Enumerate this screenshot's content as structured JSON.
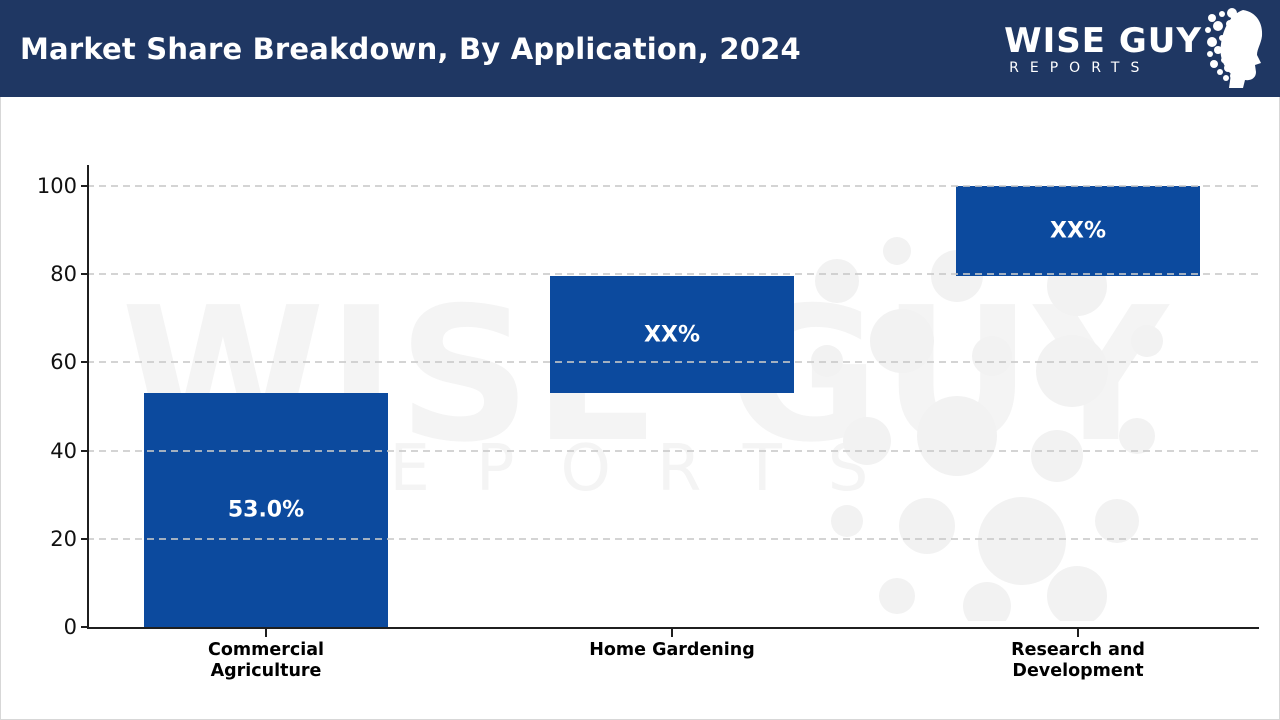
{
  "header": {
    "title": "Market Share Breakdown, By Application, 2024",
    "bg_color": "#1f3763"
  },
  "logo": {
    "wordmark": "WISE GUY",
    "subtext": "REPORTS"
  },
  "watermark": {
    "wordmark": "WISE GUY",
    "subtext": "REPORTS"
  },
  "chart_data": {
    "type": "bar",
    "variant": "floating-segment market share (waterfall style)",
    "title": "Market Share Breakdown, By Application, 2024",
    "categories": [
      {
        "lines": [
          "Commercial",
          "Agriculture"
        ]
      },
      {
        "lines": [
          "Home Gardening"
        ]
      },
      {
        "lines": [
          "Research and",
          "Development"
        ]
      }
    ],
    "segments": [
      {
        "category": "Commercial Agriculture",
        "from": 0,
        "to": 53,
        "label": "53.0%"
      },
      {
        "category": "Home Gardening",
        "from": 53,
        "to": 79.5,
        "label": "XX%"
      },
      {
        "category": "Research and Development",
        "from": 79.5,
        "to": 100,
        "label": "XX%"
      }
    ],
    "yticks": [
      0,
      20,
      40,
      60,
      80,
      100
    ],
    "ylim": [
      0,
      105
    ],
    "xlabel": "",
    "ylabel": "",
    "grid": "horizontal-dashed",
    "legend": "none",
    "bar_color": "#0c4a9e",
    "bar_label_color": "#ffffff",
    "axis_color": "#1f1f1f",
    "gridline_color": "#d9d9d9"
  }
}
